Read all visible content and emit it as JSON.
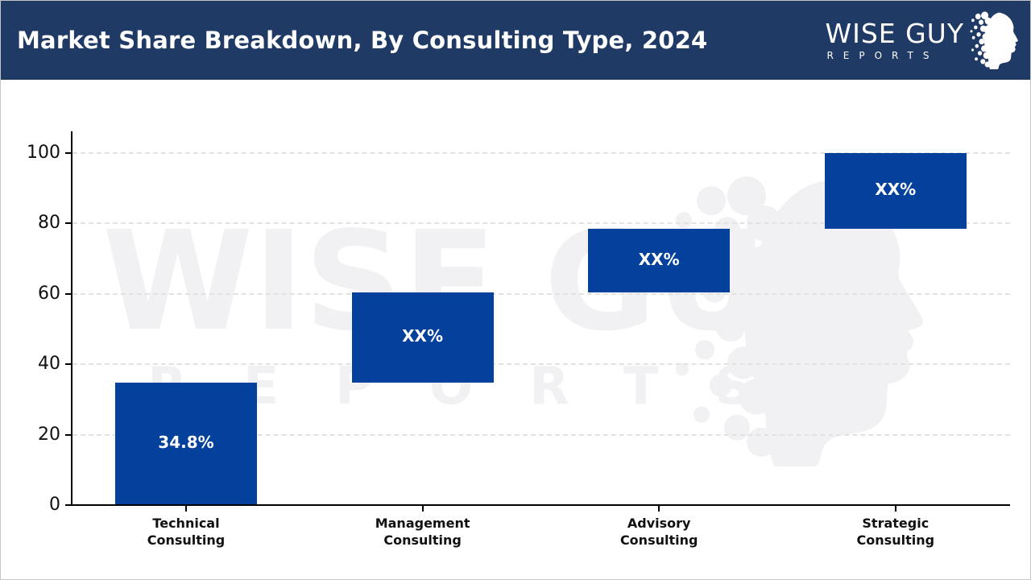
{
  "header": {
    "title": "Market Share Breakdown, By Consulting Type, 2024",
    "logo": {
      "name": "WISE GUY",
      "sub": "REPORTS"
    }
  },
  "watermark": {
    "name": "WISE GUY",
    "sub": "REPORTS"
  },
  "colors": {
    "header_navy": "#1f3a64",
    "bar_blue": "#04419c",
    "watermark_gray": "#f1f1f4",
    "gridline": "#e2e2e2",
    "axis": "#000000",
    "bar_label": "#ffffff"
  },
  "chart_data": {
    "type": "bar",
    "subtype": "waterfall-floating-bars",
    "title": "Market Share Breakdown, By Consulting Type, 2024",
    "categories": [
      [
        "Technical",
        "Consulting"
      ],
      [
        "Management",
        "Consulting"
      ],
      [
        "Advisory",
        "Consulting"
      ],
      [
        "Strategic",
        "Consulting"
      ]
    ],
    "segments": [
      {
        "category": "Technical Consulting",
        "start": 0,
        "end": 34.8,
        "label": "34.8%"
      },
      {
        "category": "Management Consulting",
        "start": 34.8,
        "end": 60.3,
        "label": "XX%"
      },
      {
        "category": "Advisory Consulting",
        "start": 60.3,
        "end": 78.3,
        "label": "XX%"
      },
      {
        "category": "Strategic Consulting",
        "start": 78.3,
        "end": 100,
        "label": "XX%"
      }
    ],
    "unit": "%",
    "xlabel": "",
    "ylabel": "",
    "ylim": [
      0,
      100
    ],
    "yticks": [
      0,
      20,
      40,
      60,
      80,
      100
    ],
    "grid": "horizontal-dashed",
    "legend": null
  }
}
